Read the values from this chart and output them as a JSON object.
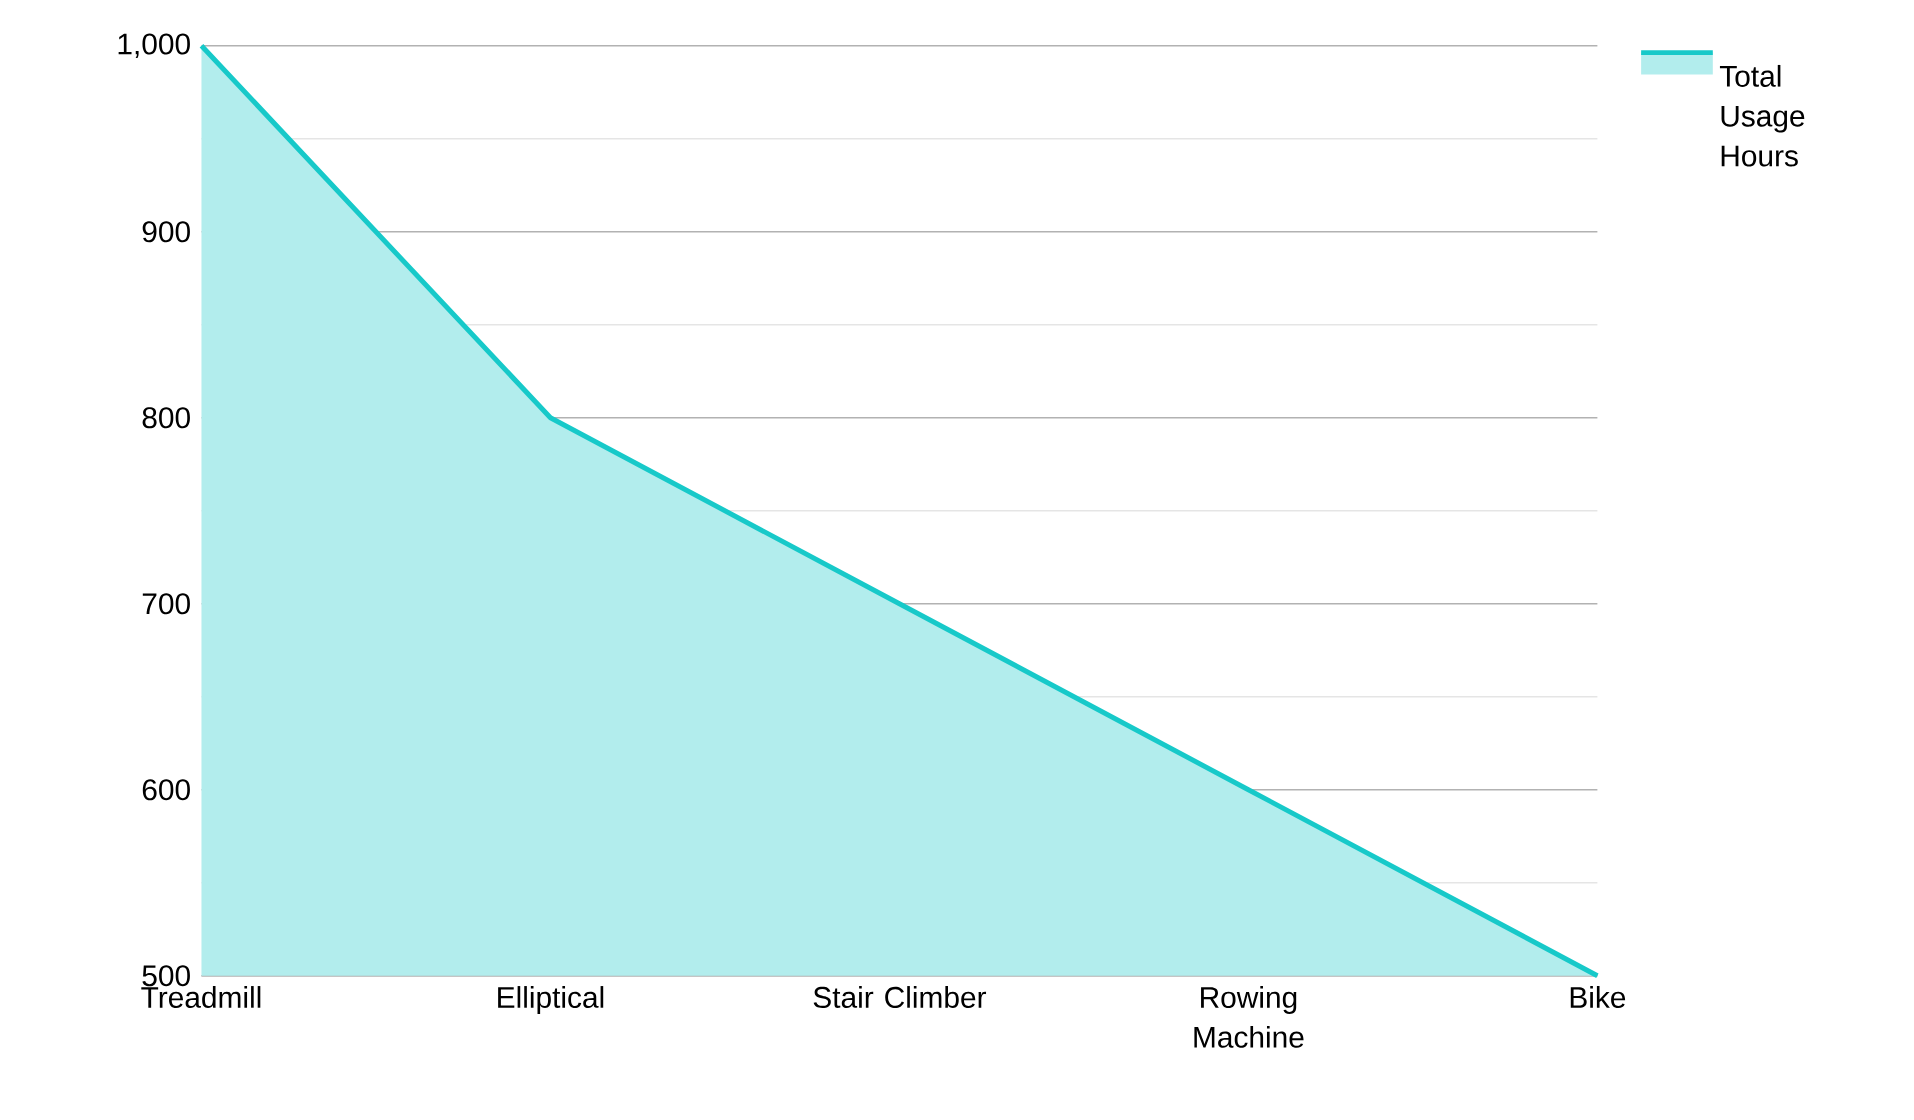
{
  "chart_data": {
    "type": "area",
    "categories": [
      "Treadmill",
      "Elliptical",
      "Stair Climber",
      "Rowing Machine",
      "Bike"
    ],
    "series": [
      {
        "name": "Total Usage Hours",
        "color": "#17c9c9",
        "values": [
          1000,
          800,
          700,
          600,
          500
        ]
      }
    ],
    "ylim": [
      500,
      1000
    ],
    "yticks": [
      {
        "value": 500,
        "label": "500"
      },
      {
        "value": 550,
        "label": null
      },
      {
        "value": 600,
        "label": "600"
      },
      {
        "value": 650,
        "label": null
      },
      {
        "value": 700,
        "label": "700"
      },
      {
        "value": 750,
        "label": null
      },
      {
        "value": 800,
        "label": "800"
      },
      {
        "value": 850,
        "label": null
      },
      {
        "value": 900,
        "label": "900"
      },
      {
        "value": 950,
        "label": null
      },
      {
        "value": 1000,
        "label": "1,000"
      }
    ],
    "grid": "y",
    "legend": "top right"
  }
}
